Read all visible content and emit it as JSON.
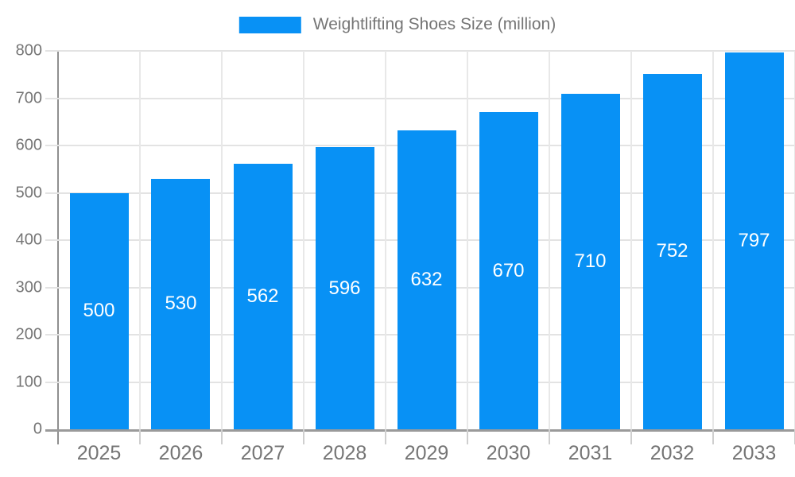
{
  "legend": {
    "label": "Weightlifting Shoes Size (million)"
  },
  "chart_data": {
    "type": "bar",
    "title": "Weightlifting Shoes Size (million)",
    "categories": [
      "2025",
      "2026",
      "2027",
      "2028",
      "2029",
      "2030",
      "2031",
      "2032",
      "2033"
    ],
    "values": [
      500,
      530,
      562,
      596,
      632,
      670,
      710,
      752,
      797
    ],
    "xlabel": "",
    "ylabel": "",
    "ylim": [
      0,
      800
    ],
    "ytick_step": 100,
    "yticks": [
      0,
      100,
      200,
      300,
      400,
      500,
      600,
      700,
      800
    ],
    "grid": true,
    "legend_position": "top-center",
    "legend_entries": [
      "Weightlifting Shoes Size (million)"
    ],
    "bar_labels_visible": true
  },
  "colors": {
    "bar": "#0891f5",
    "bar_label": "#ffffff",
    "axis_text": "#757575",
    "grid_line": "#e3e3e3",
    "axis_line": "#9a9a9a",
    "background": "#ffffff"
  }
}
